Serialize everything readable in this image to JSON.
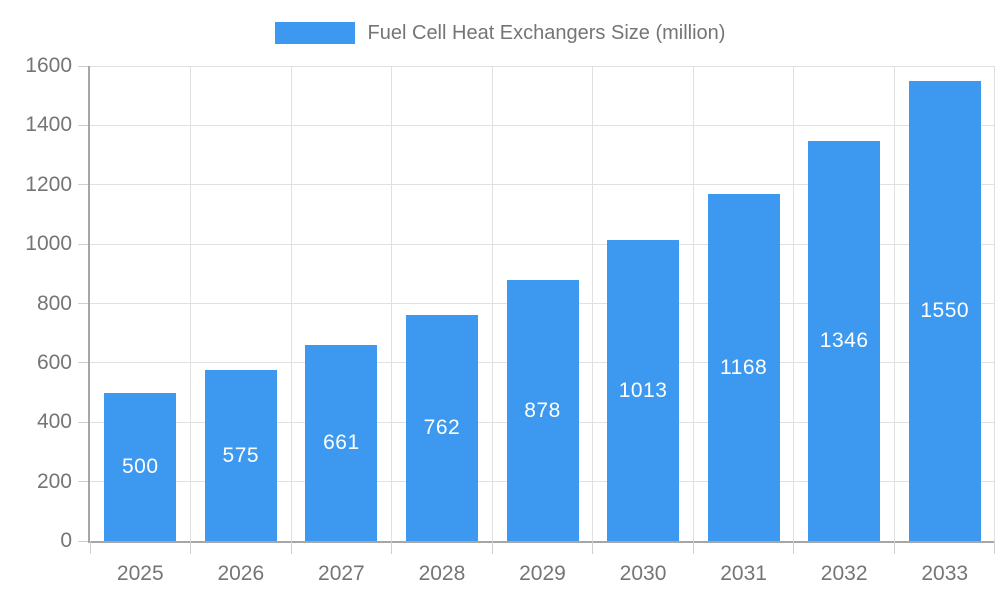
{
  "legend": {
    "label": "Fuel Cell Heat Exchangers Size (million)"
  },
  "chart_data": {
    "type": "bar",
    "title": "Fuel Cell Heat Exchangers Size (million)",
    "categories": [
      "2025",
      "2026",
      "2027",
      "2028",
      "2029",
      "2030",
      "2031",
      "2032",
      "2033"
    ],
    "values": [
      500,
      575,
      661,
      762,
      878,
      1013,
      1168,
      1346,
      1550
    ],
    "xlabel": "",
    "ylabel": "",
    "ylim": [
      0,
      1600
    ],
    "yticks": [
      0,
      200,
      400,
      600,
      800,
      1000,
      1200,
      1400,
      1600
    ],
    "grid": true,
    "legend_position": "top",
    "value_labels": "inside-center"
  },
  "style": {
    "bar_color": "#3d99ef",
    "value_label_color": "#ffffff",
    "grid_color": "#e0e0e0",
    "tick_color": "#cfcfcf",
    "axis_color": "#a6a6a6",
    "text_color": "#757575",
    "background": "#ffffff"
  }
}
